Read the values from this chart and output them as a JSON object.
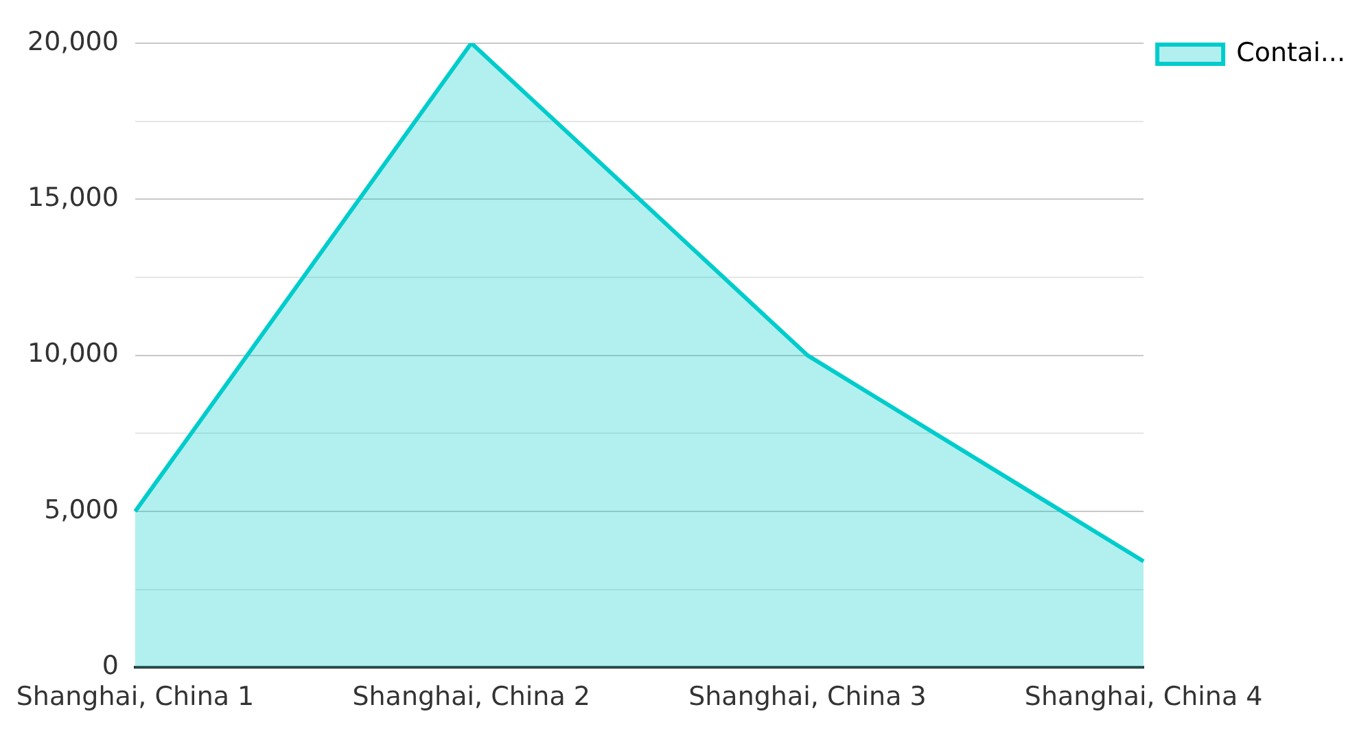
{
  "chart_data": {
    "type": "area",
    "categories": [
      "Shanghai, China 1",
      "Shanghai, China 2",
      "Shanghai, China 3",
      "Shanghai, China 4"
    ],
    "series": [
      {
        "name": "Contai...",
        "color": "#00cccc",
        "values": [
          5000,
          20000,
          10000,
          3400
        ]
      }
    ],
    "ylim": [
      0,
      20000
    ],
    "yticks": [
      0,
      {
        "value": 2500,
        "label": null
      },
      {
        "value": 5000,
        "label": "5,000"
      },
      {
        "value": 7500,
        "label": null
      },
      {
        "value": 10000,
        "label": "10,000"
      },
      {
        "value": 12500,
        "label": null
      },
      {
        "value": 15000,
        "label": "15,000"
      },
      {
        "value": 17500,
        "label": null
      },
      {
        "value": 20000,
        "label": "20,000"
      }
    ],
    "grid": "y",
    "legend": "top right"
  }
}
